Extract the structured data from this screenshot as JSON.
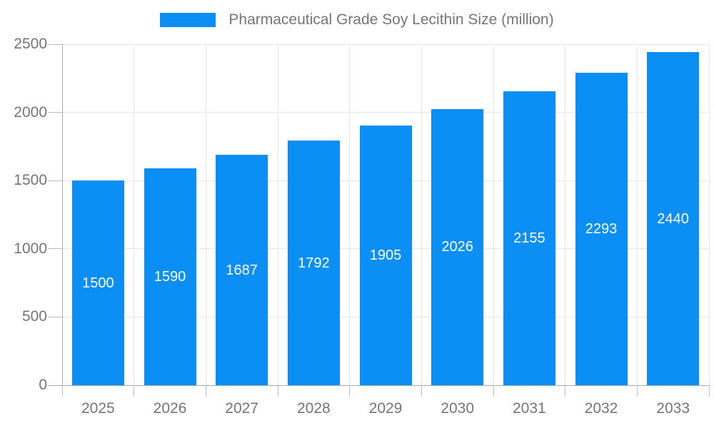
{
  "legend": {
    "label": "Pharmaceutical Grade Soy Lecithin Size (million)"
  },
  "chart_data": {
    "type": "bar",
    "title": "Pharmaceutical Grade Soy Lecithin Size (million)",
    "series_name": "Pharmaceutical Grade Soy Lecithin Size (million)",
    "categories": [
      "2025",
      "2026",
      "2027",
      "2028",
      "2029",
      "2030",
      "2031",
      "2032",
      "2033"
    ],
    "values": [
      1500,
      1590,
      1687,
      1792,
      1905,
      2026,
      2155,
      2293,
      2440
    ],
    "xlabel": "",
    "ylabel": "",
    "ylim": [
      0,
      2500
    ],
    "ytick_interval": 500,
    "ytick_labels": [
      "0",
      "500",
      "1000",
      "1500",
      "2000",
      "2500"
    ],
    "grid": true,
    "legend_position": "top-center",
    "value_label_position": "inside-center"
  },
  "colors": {
    "bar": "#0C8FF5",
    "bar_label": "#FFFFFF",
    "axis_text": "#757575",
    "axis_line": "#AAAAAA",
    "tick": "#BDBDBD",
    "gridline": "#E6E6E6",
    "background": "#FFFFFF"
  }
}
